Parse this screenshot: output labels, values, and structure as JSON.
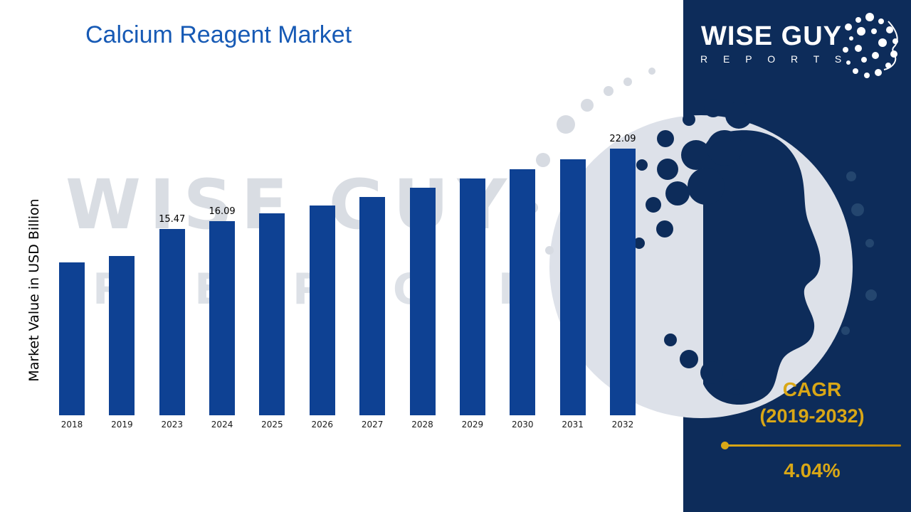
{
  "title": "Calcium Reagent Market",
  "watermark": {
    "line1": "WISE GUY",
    "line2": "R E P O R T S"
  },
  "brand": {
    "name": "WISE GUY",
    "sub": "R E P O R T S",
    "cagr_label": "CAGR",
    "cagr_range": "(2019-2032)",
    "cagr_value": "4.04%"
  },
  "colors": {
    "bar": "#0e4193",
    "title": "#175ab5",
    "panel": "#0d2c5a",
    "accent": "#d9a716",
    "watermark": "#d9dde3"
  },
  "chart_data": {
    "type": "bar",
    "title": "Calcium Reagent Market",
    "xlabel": "",
    "ylabel": "Market Value in USD Billion",
    "unit": "USD Billion",
    "categories": [
      "2018",
      "2019",
      "2023",
      "2024",
      "2025",
      "2026",
      "2027",
      "2028",
      "2029",
      "2030",
      "2031",
      "2032"
    ],
    "values": [
      12.69,
      13.2,
      15.47,
      16.09,
      16.74,
      17.42,
      18.12,
      18.85,
      19.61,
      20.4,
      21.23,
      22.09
    ],
    "bar_labels": [
      "",
      "",
      "15.47",
      "16.09",
      "",
      "",
      "",
      "",
      "",
      "",
      "",
      "22.09"
    ],
    "ylim": [
      0,
      25
    ],
    "grid": false,
    "legend": false
  }
}
